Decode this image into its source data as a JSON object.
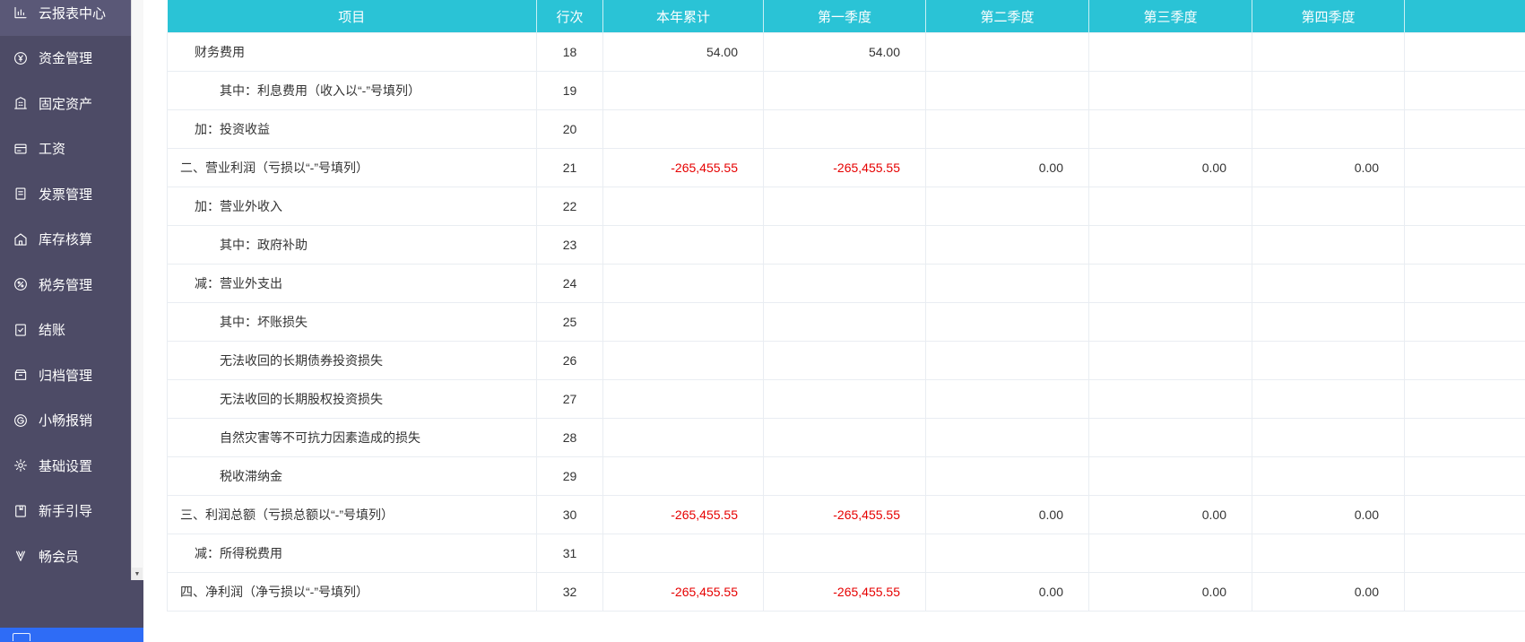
{
  "colors": {
    "header_accent": "#2ac3d6",
    "sidebar_bg": "#4d4b66",
    "sidebar_active_bg": "#2e6cf6",
    "negative_value": "#e60000"
  },
  "sidebar": {
    "items": [
      {
        "name": "cloud-report-center",
        "label": "云报表中心",
        "icon": "bar-chart-icon"
      },
      {
        "name": "funds",
        "label": "资金管理",
        "icon": "yen-coin-icon"
      },
      {
        "name": "fixed-assets",
        "label": "固定资产",
        "icon": "building-icon"
      },
      {
        "name": "payroll",
        "label": "工资",
        "icon": "card-icon"
      },
      {
        "name": "invoice",
        "label": "发票管理",
        "icon": "invoice-icon"
      },
      {
        "name": "inventory",
        "label": "库存核算",
        "icon": "warehouse-icon"
      },
      {
        "name": "tax",
        "label": "税务管理",
        "icon": "percent-icon"
      },
      {
        "name": "closing",
        "label": "结账",
        "icon": "book-check-icon"
      },
      {
        "name": "archive",
        "label": "归档管理",
        "icon": "archive-box-icon"
      },
      {
        "name": "reimbursement",
        "label": "小畅报销",
        "icon": "g-circle-icon"
      },
      {
        "name": "settings",
        "label": "基础设置",
        "icon": "gear-icon"
      },
      {
        "name": "guide",
        "label": "新手引导",
        "icon": "bookmark-icon"
      },
      {
        "name": "member",
        "label": "畅会员",
        "icon": "v-icon"
      }
    ],
    "scroll_down_glyph": "▼"
  },
  "table": {
    "headers": [
      "项目",
      "行次",
      "本年累计",
      "第一季度",
      "第二季度",
      "第三季度",
      "第四季度"
    ],
    "rows": [
      {
        "item": "财务费用",
        "indent": 1,
        "line": "18",
        "values": [
          "54.00",
          "54.00",
          "",
          "",
          ""
        ]
      },
      {
        "item": "其中：利息费用（收入以“-”号填列）",
        "indent": 2,
        "line": "19",
        "values": [
          "",
          "",
          "",
          "",
          ""
        ]
      },
      {
        "item": "加：投资收益",
        "indent": 1,
        "line": "20",
        "values": [
          "",
          "",
          "",
          "",
          ""
        ]
      },
      {
        "item": "二、营业利润（亏损以“-”号填列）",
        "indent": 0,
        "line": "21",
        "values": [
          "-265,455.55",
          "-265,455.55",
          "0.00",
          "0.00",
          "0.00"
        ]
      },
      {
        "item": "加：营业外收入",
        "indent": 1,
        "line": "22",
        "values": [
          "",
          "",
          "",
          "",
          ""
        ]
      },
      {
        "item": "其中：政府补助",
        "indent": 2,
        "line": "23",
        "values": [
          "",
          "",
          "",
          "",
          ""
        ]
      },
      {
        "item": "减：营业外支出",
        "indent": 1,
        "line": "24",
        "values": [
          "",
          "",
          "",
          "",
          ""
        ]
      },
      {
        "item": "其中：坏账损失",
        "indent": 2,
        "line": "25",
        "values": [
          "",
          "",
          "",
          "",
          ""
        ]
      },
      {
        "item": "无法收回的长期债券投资损失",
        "indent": 2,
        "line": "26",
        "values": [
          "",
          "",
          "",
          "",
          ""
        ]
      },
      {
        "item": "无法收回的长期股权投资损失",
        "indent": 2,
        "line": "27",
        "values": [
          "",
          "",
          "",
          "",
          ""
        ]
      },
      {
        "item": "自然灾害等不可抗力因素造成的损失",
        "indent": 2,
        "line": "28",
        "values": [
          "",
          "",
          "",
          "",
          ""
        ]
      },
      {
        "item": "税收滞纳金",
        "indent": 2,
        "line": "29",
        "values": [
          "",
          "",
          "",
          "",
          ""
        ]
      },
      {
        "item": "三、利润总额（亏损总额以“-”号填列）",
        "indent": 0,
        "line": "30",
        "values": [
          "-265,455.55",
          "-265,455.55",
          "0.00",
          "0.00",
          "0.00"
        ]
      },
      {
        "item": "减：所得税费用",
        "indent": 1,
        "line": "31",
        "values": [
          "",
          "",
          "",
          "",
          ""
        ]
      },
      {
        "item": "四、净利润（净亏损以“-”号填列）",
        "indent": 0,
        "line": "32",
        "values": [
          "-265,455.55",
          "-265,455.55",
          "0.00",
          "0.00",
          "0.00"
        ]
      }
    ]
  }
}
